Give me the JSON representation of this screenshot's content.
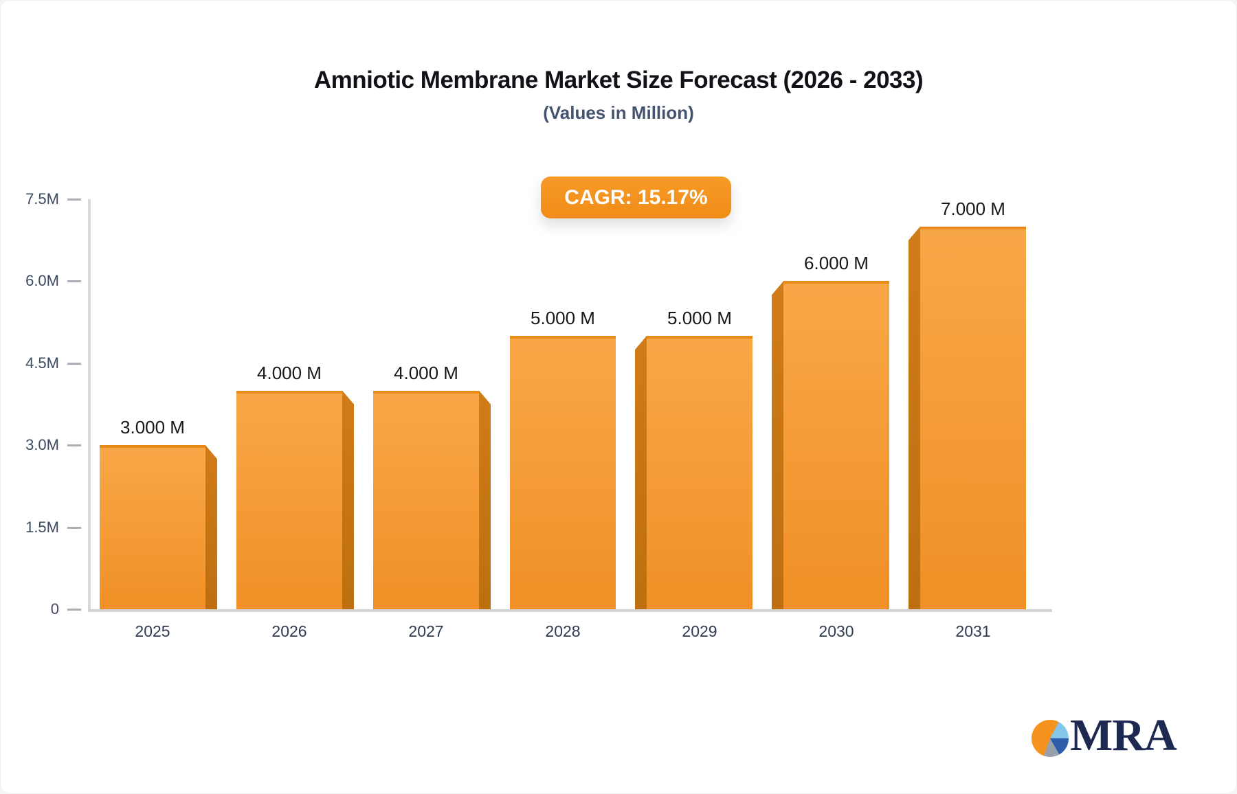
{
  "header": {
    "title": "Amniotic Membrane Market Size Forecast (2026 - 2033)",
    "subtitle": "(Values in Million)"
  },
  "badge": {
    "label": "CAGR: 15.17%",
    "background": "#f3911f",
    "text_color": "#ffffff"
  },
  "chart_data": {
    "type": "bar",
    "title": "Amniotic Membrane Market Size Forecast (2026 - 2033)",
    "subtitle": "(Values in Million)",
    "categories": [
      "2025",
      "2026",
      "2027",
      "2028",
      "2029",
      "2030",
      "2031"
    ],
    "values": [
      3,
      4,
      4,
      5,
      5,
      6,
      7
    ],
    "value_labels": [
      "3.000 M",
      "4.000 M",
      "4.000 M",
      "5.000 M",
      "5.000 M",
      "6.000 M",
      "7.000 M"
    ],
    "unit": "Million",
    "yticks": [
      "0",
      "1.5M",
      "3.0M",
      "4.5M",
      "6.0M",
      "7.5M"
    ],
    "ylim": [
      0,
      7.5
    ],
    "annotation": "CAGR: 15.17%",
    "grid": false,
    "legend": false,
    "colors": {
      "bar_face_top": "#f8a748",
      "bar_face_bottom": "#f09026",
      "bar_top_edge": "#e78b15",
      "bar_side_dark": "#c77414",
      "axis_line": "#d6d6da",
      "tick_label": "#3d4a61",
      "category_label": "#2f3b52",
      "value_label": "#17181c"
    }
  },
  "logo": {
    "text": "MRA",
    "pie_icon_colors": {
      "orange": "#f6921e",
      "light_blue": "#85c7ea",
      "dark_blue": "#2d5ca8",
      "gray": "#98a1ab"
    },
    "text_color": "#1d2950"
  }
}
